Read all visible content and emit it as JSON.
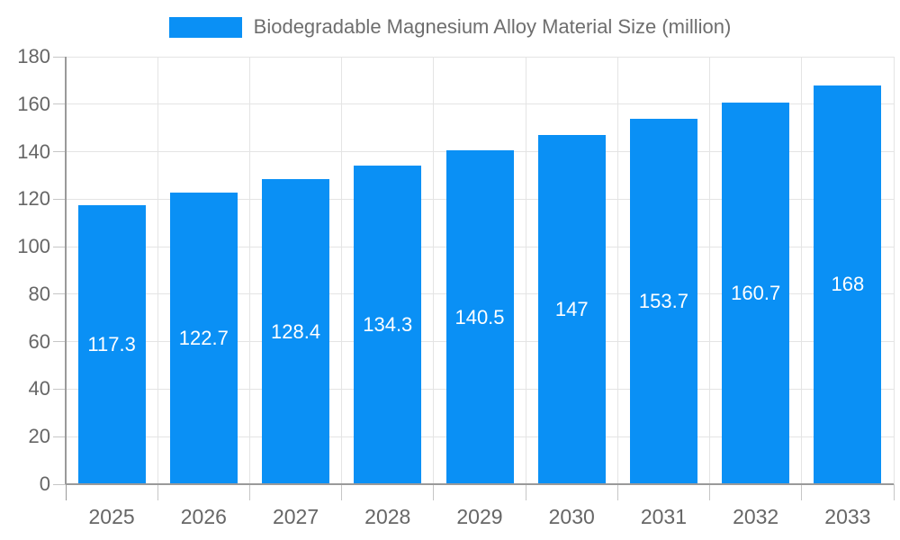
{
  "chart_data": {
    "type": "bar",
    "title": "Biodegradable Magnesium Alloy Material Size (million)",
    "categories": [
      "2025",
      "2026",
      "2027",
      "2028",
      "2029",
      "2030",
      "2031",
      "2032",
      "2033"
    ],
    "values": [
      117.3,
      122.7,
      128.4,
      134.3,
      140.5,
      147,
      153.7,
      160.7,
      168
    ],
    "value_labels": [
      "117.3",
      "122.7",
      "128.4",
      "134.3",
      "140.5",
      "147",
      "153.7",
      "160.7",
      "168"
    ],
    "xlabel": "",
    "ylabel": "",
    "ylim": [
      0,
      180
    ],
    "ytick_step": 20,
    "ytick_labels": [
      "0",
      "20",
      "40",
      "60",
      "80",
      "100",
      "120",
      "140",
      "160",
      "180"
    ],
    "grid": "on",
    "legend_position": "top-center",
    "colors": {
      "bar": "#0a90f5",
      "bar_label_text": "#ffffff",
      "axis_text": "#666666",
      "legend_text": "#6e6e6e",
      "gridline": "#e4e4e4",
      "axis_line": "#9a9a9a",
      "tick": "#c6c6c6",
      "background": "#ffffff"
    }
  }
}
